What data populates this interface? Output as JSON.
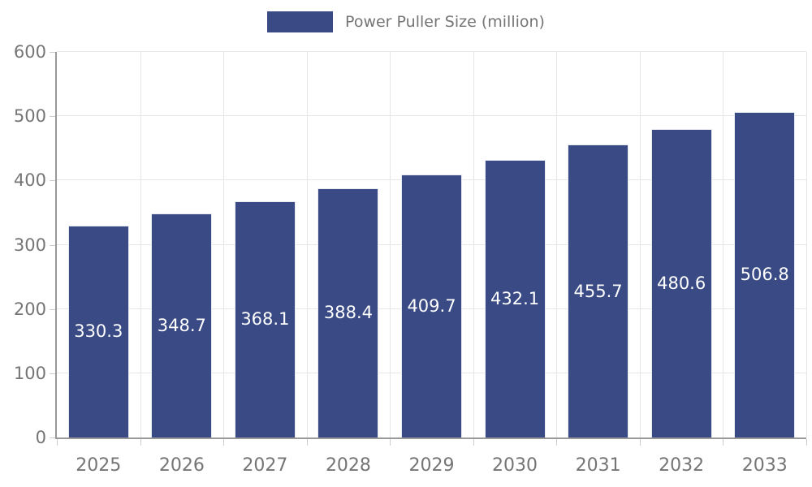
{
  "legend": {
    "label": "Power Puller Size (million)"
  },
  "colors": {
    "bar": "#394a84",
    "bar_border": "#e8eaf2",
    "axis_line": "#999999",
    "tick": "#cccccc",
    "grid": "#e6e6e6",
    "axis_text": "#757575",
    "bar_label_text": "#ffffff",
    "background": "#ffffff"
  },
  "chart_data": {
    "type": "bar",
    "title": "Power Puller Size (million)",
    "categories": [
      "2025",
      "2026",
      "2027",
      "2028",
      "2029",
      "2030",
      "2031",
      "2032",
      "2033"
    ],
    "series": [
      {
        "name": "Power Puller Size (million)",
        "values": [
          330.3,
          348.7,
          368.1,
          388.4,
          409.7,
          432.1,
          455.7,
          480.6,
          506.8
        ]
      }
    ],
    "values": [
      330.3,
      348.7,
      368.1,
      388.4,
      409.7,
      432.1,
      455.7,
      480.6,
      506.8
    ],
    "value_labels": [
      "330.3",
      "348.7",
      "368.1",
      "388.4",
      "409.7",
      "432.1",
      "455.7",
      "480.6",
      "506.8"
    ],
    "xlabel": "",
    "ylabel": "",
    "ylim": [
      0,
      600
    ],
    "yticks": [
      0,
      100,
      200,
      300,
      400,
      500,
      600
    ],
    "grid": true,
    "legend_position": "top-center",
    "bar_label_position": "inside-center"
  }
}
